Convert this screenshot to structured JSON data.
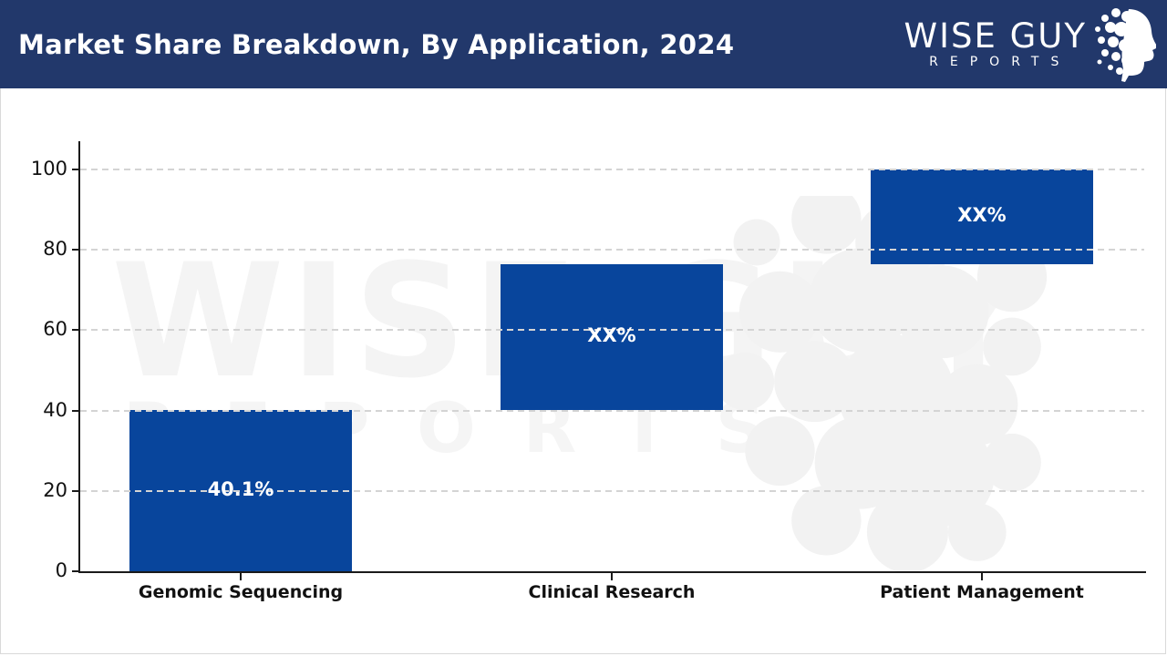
{
  "header": {
    "title": "Market Share Breakdown, By Application, 2024"
  },
  "logo": {
    "line1": "WISE GUY",
    "line2": "REPORTS"
  },
  "watermark": {
    "line1": "WISE GUY",
    "line2": "REPORTS"
  },
  "chart_data": {
    "type": "bar",
    "subtype": "waterfall",
    "title": "Market Share Breakdown, By Application, 2024",
    "categories": [
      "Genomic Sequencing",
      "Clinical Research",
      "Patient Management"
    ],
    "segments": [
      [
        0,
        40.1
      ],
      [
        40.1,
        76.5
      ],
      [
        76.5,
        100
      ]
    ],
    "values": [
      40.1,
      36.4,
      23.5
    ],
    "bar_labels": [
      "40.1%",
      "XX%",
      "XX%"
    ],
    "xlabel": "",
    "ylabel": "",
    "yticks": [
      0,
      20,
      40,
      60,
      80,
      100
    ],
    "ylim": [
      0,
      107
    ],
    "grid": "dashed-horizontal",
    "legend": "none",
    "bar_color": "#08459c",
    "label_color": "#ffffff"
  },
  "colors": {
    "header_bg": "#22386b",
    "bar": "#08459c",
    "axis": "#1a1a1a",
    "grid": "#d4d4d4",
    "watermark": "#f4f4f4",
    "border": "#d9d9d9"
  }
}
